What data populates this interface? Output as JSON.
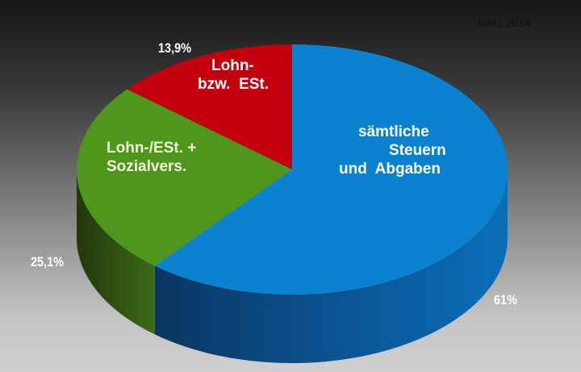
{
  "chart_data": {
    "type": "pie",
    "style": "3d",
    "source_note": "fores 2014",
    "slices": [
      {
        "label_lines": [
          "sämtliche",
          "Steuern",
          "und  Abgaben"
        ],
        "value": 61,
        "value_label": "61%",
        "color": "#0a82d0"
      },
      {
        "label_lines": [
          "Lohn-/ESt. +",
          "Sozialvers."
        ],
        "value": 25.1,
        "value_label": "25,1%",
        "color": "#4e961c"
      },
      {
        "label_lines": [
          "Lohn-",
          "bzw.  ESt."
        ],
        "value": 13.9,
        "value_label": "13,9%",
        "color": "#c4000e"
      }
    ],
    "start_angle": "12 o'clock",
    "direction": "clockwise"
  }
}
